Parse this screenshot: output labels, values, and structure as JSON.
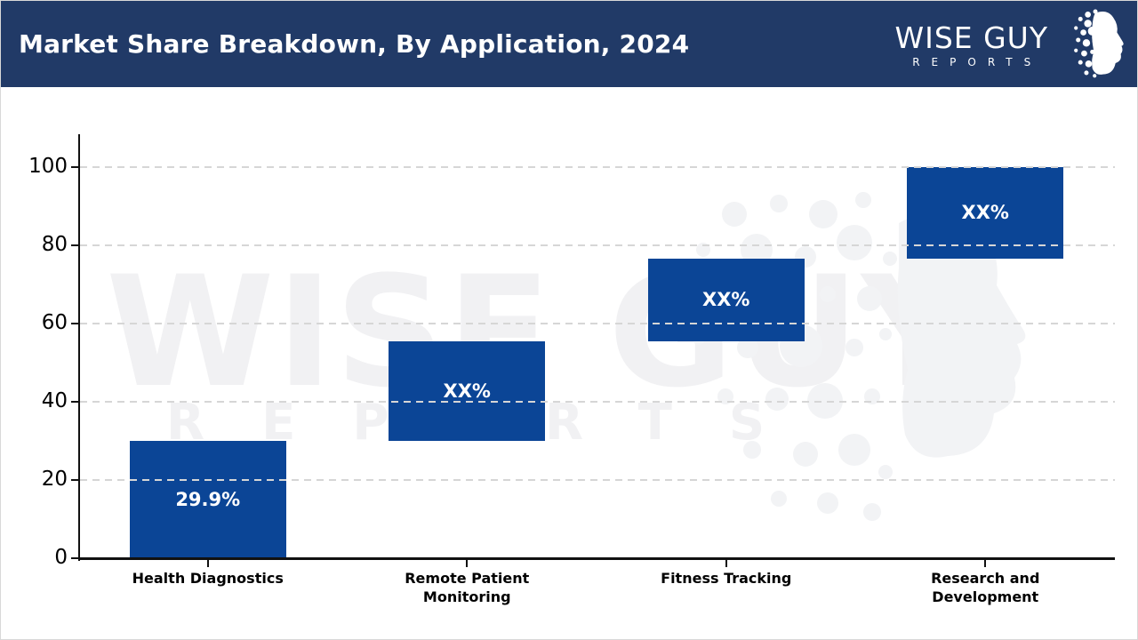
{
  "header": {
    "title": "Market Share Breakdown, By Application, 2024",
    "logo_line1": "WISE GUY",
    "logo_line2": "REPORTS"
  },
  "watermark": {
    "line1": "WISE GUY",
    "line2": "REPORTS"
  },
  "chart_data": {
    "type": "bar",
    "subtype": "waterfall",
    "title": "Market Share Breakdown, By Application, 2024",
    "categories": [
      "Health Diagnostics",
      "Remote Patient Monitoring",
      "Fitness Tracking",
      "Research and Development"
    ],
    "bars": [
      {
        "category": "Health Diagnostics",
        "start": 0,
        "end": 29.9,
        "label": "29.9%"
      },
      {
        "category": "Remote Patient Monitoring",
        "start": 29.9,
        "end": 55.5,
        "label": "XX%"
      },
      {
        "category": "Fitness Tracking",
        "start": 55.5,
        "end": 76.6,
        "label": "XX%"
      },
      {
        "category": "Research and Development",
        "start": 76.6,
        "end": 100,
        "label": "XX%"
      }
    ],
    "xlabel": "",
    "ylabel": "",
    "ylim": [
      0,
      100
    ],
    "yticks": [
      0,
      20,
      40,
      60,
      80,
      100
    ],
    "grid": true,
    "grid_style": "dashed",
    "legend": false,
    "bar_color": "#0b4596",
    "bar_label_color": "#ffffff"
  },
  "colors": {
    "header_bg": "#213a67",
    "bar": "#0b4596",
    "grid": "#d6d6d6",
    "axis": "#111111",
    "watermark": "#f1f1f3",
    "page_bg": "#ffffff"
  }
}
